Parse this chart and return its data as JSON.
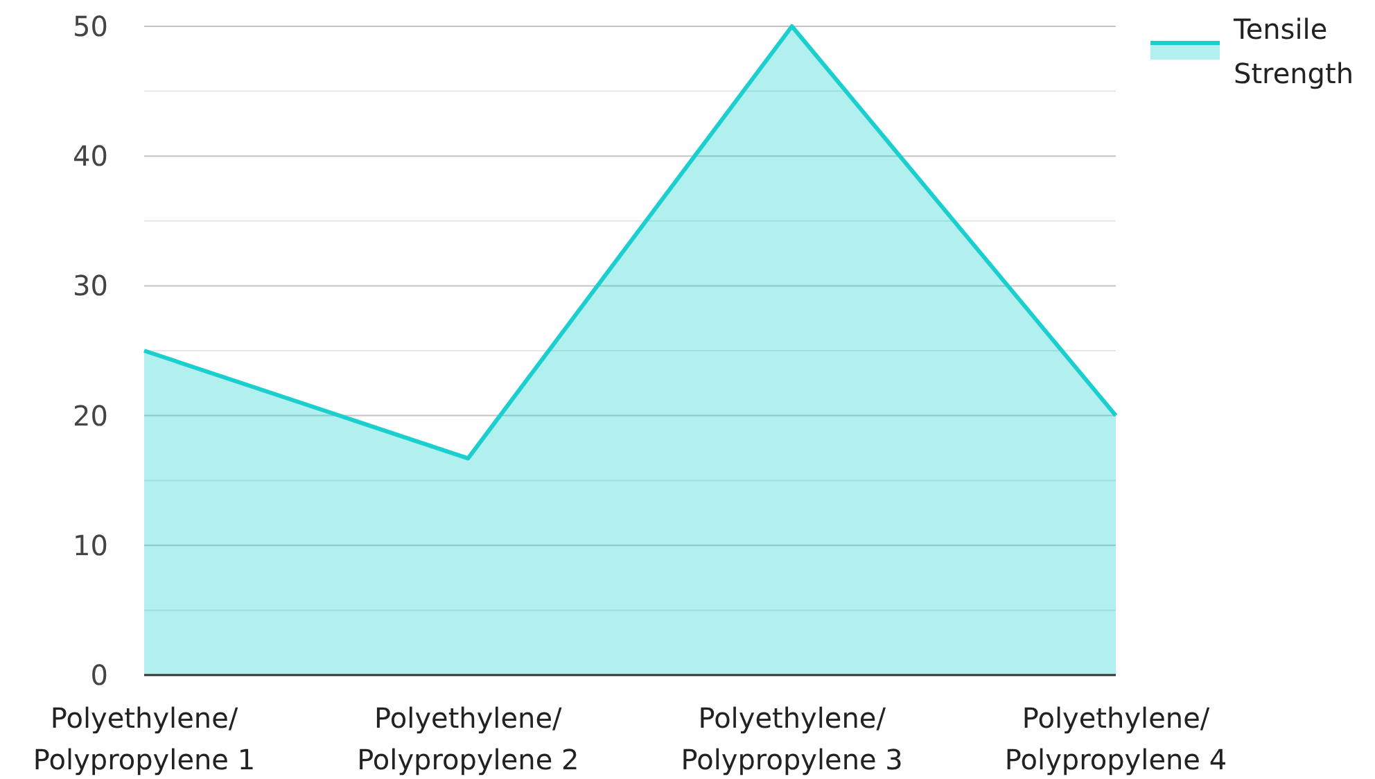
{
  "chart_data": {
    "type": "area",
    "categories": [
      "Polyethylene/Polypropylene 1",
      "Polyethylene/Polypropylene 2",
      "Polyethylene/Polypropylene 3",
      "Polyethylene/Polypropylene 4"
    ],
    "series": [
      {
        "name": "Tensile Strength",
        "color": "#1ccfcf",
        "values": [
          25,
          16.7,
          50,
          20
        ]
      }
    ],
    "ylim": [
      0,
      50
    ],
    "yticks": [
      0,
      {
        "value": 5,
        "label": null
      },
      10,
      {
        "value": 15,
        "label": null
      },
      20,
      {
        "value": 25,
        "label": null
      },
      30,
      {
        "value": 35,
        "label": null
      },
      40,
      {
        "value": 45,
        "label": null
      },
      50
    ],
    "grid": "y",
    "legend": "top right"
  }
}
